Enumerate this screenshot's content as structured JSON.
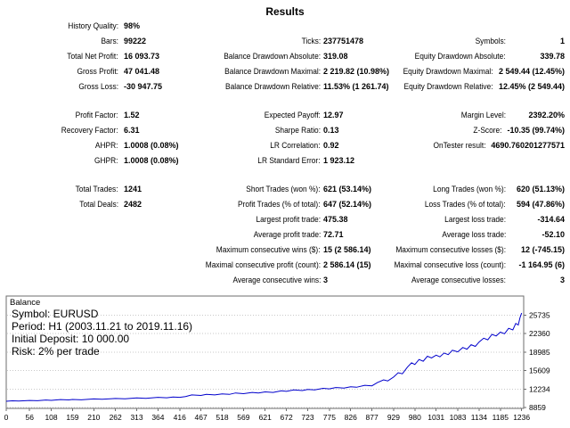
{
  "title": "Results",
  "stats": {
    "rows": [
      [
        "History Quality:",
        "98%",
        "",
        "",
        "",
        ""
      ],
      [
        "Bars:",
        "99222",
        "Ticks:",
        "237751478",
        "Symbols:",
        "1"
      ],
      [
        "Total Net Profit:",
        "16 093.73",
        "Balance Drawdown Absolute:",
        "319.08",
        "Equity Drawdown Absolute:",
        "339.78"
      ],
      [
        "Gross Profit:",
        "47 041.48",
        "Balance Drawdown Maximal:",
        "2 219.82 (10.98%)",
        "Equity Drawdown Maximal:",
        "2 549.44 (12.45%)"
      ],
      [
        "Gross Loss:",
        "-30 947.75",
        "Balance Drawdown Relative:",
        "11.53% (1 261.74)",
        "Equity Drawdown Relative:",
        "12.45% (2 549.44)"
      ],
      null,
      [
        "Profit Factor:",
        "1.52",
        "Expected Payoff:",
        "12.97",
        "Margin Level:",
        "2392.20%"
      ],
      [
        "Recovery Factor:",
        "6.31",
        "Sharpe Ratio:",
        "0.13",
        "Z-Score:",
        "-10.35 (99.74%)"
      ],
      [
        "AHPR:",
        "1.0008 (0.08%)",
        "LR Correlation:",
        "0.92",
        "OnTester result:",
        "4690.760201277571"
      ],
      [
        "GHPR:",
        "1.0008 (0.08%)",
        "LR Standard Error:",
        "1 923.12",
        "",
        ""
      ],
      null,
      [
        "Total Trades:",
        "1241",
        "Short Trades (won %):",
        "621 (53.14%)",
        "Long Trades (won %):",
        "620 (51.13%)"
      ],
      [
        "Total Deals:",
        "2482",
        "Profit Trades (% of total):",
        "647 (52.14%)",
        "Loss Trades (% of total):",
        "594 (47.86%)"
      ],
      [
        "",
        "",
        "Largest profit trade:",
        "475.38",
        "Largest loss trade:",
        "-314.64"
      ],
      [
        "",
        "",
        "Average profit trade:",
        "72.71",
        "Average loss trade:",
        "-52.10"
      ],
      [
        "",
        "",
        "Maximum consecutive wins ($):",
        "15 (2 586.14)",
        "Maximum consecutive losses ($):",
        "12 (-745.15)"
      ],
      [
        "",
        "",
        "Maximal consecutive profit (count):",
        "2 586.14 (15)",
        "Maximal consecutive loss (count):",
        "-1 164.95 (6)"
      ],
      [
        "",
        "",
        "Average consecutive wins:",
        "3",
        "Average consecutive losses:",
        "3"
      ]
    ]
  },
  "chart_data": {
    "type": "line",
    "legend": "Balance",
    "line_color": "#0000CC",
    "grid_color": "#C9C9C9",
    "axis_color": "#6E6E6E",
    "annotations": [
      "Symbol: EURUSD",
      "Period: H1 (2003.11.21 to 2019.11.16)",
      "Initial Deposit: 10 000.00",
      "Risk: 2% per trade"
    ],
    "x_ticks": [
      0,
      56,
      108,
      159,
      210,
      262,
      313,
      364,
      416,
      467,
      518,
      569,
      621,
      672,
      723,
      775,
      826,
      877,
      929,
      980,
      1031,
      1083,
      1134,
      1185,
      1236
    ],
    "y_ticks": [
      8859,
      12234,
      15609,
      18985,
      22360,
      25735
    ],
    "x_range": [
      0,
      1241
    ],
    "y_range": [
      8700,
      29200
    ],
    "series": [
      {
        "name": "Balance",
        "points": [
          [
            0,
            10000
          ],
          [
            15,
            10080
          ],
          [
            30,
            10030
          ],
          [
            56,
            10150
          ],
          [
            75,
            10100
          ],
          [
            95,
            10230
          ],
          [
            108,
            10170
          ],
          [
            130,
            10310
          ],
          [
            150,
            10250
          ],
          [
            159,
            10330
          ],
          [
            180,
            10270
          ],
          [
            210,
            10430
          ],
          [
            230,
            10360
          ],
          [
            262,
            10510
          ],
          [
            285,
            10440
          ],
          [
            313,
            10610
          ],
          [
            335,
            10530
          ],
          [
            364,
            10710
          ],
          [
            385,
            10630
          ],
          [
            400,
            10790
          ],
          [
            416,
            10710
          ],
          [
            430,
            10860
          ],
          [
            445,
            11160
          ],
          [
            467,
            11060
          ],
          [
            480,
            11260
          ],
          [
            500,
            11160
          ],
          [
            518,
            11360
          ],
          [
            535,
            11260
          ],
          [
            550,
            11510
          ],
          [
            569,
            11390
          ],
          [
            590,
            11610
          ],
          [
            605,
            11510
          ],
          [
            621,
            11710
          ],
          [
            640,
            11610
          ],
          [
            660,
            11910
          ],
          [
            672,
            11810
          ],
          [
            690,
            12060
          ],
          [
            710,
            11960
          ],
          [
            723,
            12160
          ],
          [
            740,
            12060
          ],
          [
            760,
            12360
          ],
          [
            775,
            12260
          ],
          [
            790,
            12510
          ],
          [
            810,
            12410
          ],
          [
            826,
            12660
          ],
          [
            840,
            12560
          ],
          [
            860,
            12910
          ],
          [
            877,
            12810
          ],
          [
            890,
            13410
          ],
          [
            905,
            13910
          ],
          [
            915,
            13710
          ],
          [
            929,
            14410
          ],
          [
            940,
            15210
          ],
          [
            950,
            15010
          ],
          [
            962,
            16210
          ],
          [
            972,
            17010
          ],
          [
            980,
            16710
          ],
          [
            990,
            17610
          ],
          [
            1000,
            17310
          ],
          [
            1010,
            18210
          ],
          [
            1020,
            17910
          ],
          [
            1031,
            18410
          ],
          [
            1040,
            18110
          ],
          [
            1050,
            18810
          ],
          [
            1060,
            18510
          ],
          [
            1070,
            19310
          ],
          [
            1083,
            19010
          ],
          [
            1095,
            19810
          ],
          [
            1105,
            19510
          ],
          [
            1115,
            20310
          ],
          [
            1125,
            20010
          ],
          [
            1134,
            20810
          ],
          [
            1145,
            21510
          ],
          [
            1155,
            21210
          ],
          [
            1165,
            22210
          ],
          [
            1175,
            21910
          ],
          [
            1185,
            22610
          ],
          [
            1195,
            22310
          ],
          [
            1205,
            23310
          ],
          [
            1215,
            23010
          ],
          [
            1222,
            24210
          ],
          [
            1228,
            23910
          ],
          [
            1232,
            25210
          ],
          [
            1236,
            26094
          ]
        ]
      }
    ]
  }
}
